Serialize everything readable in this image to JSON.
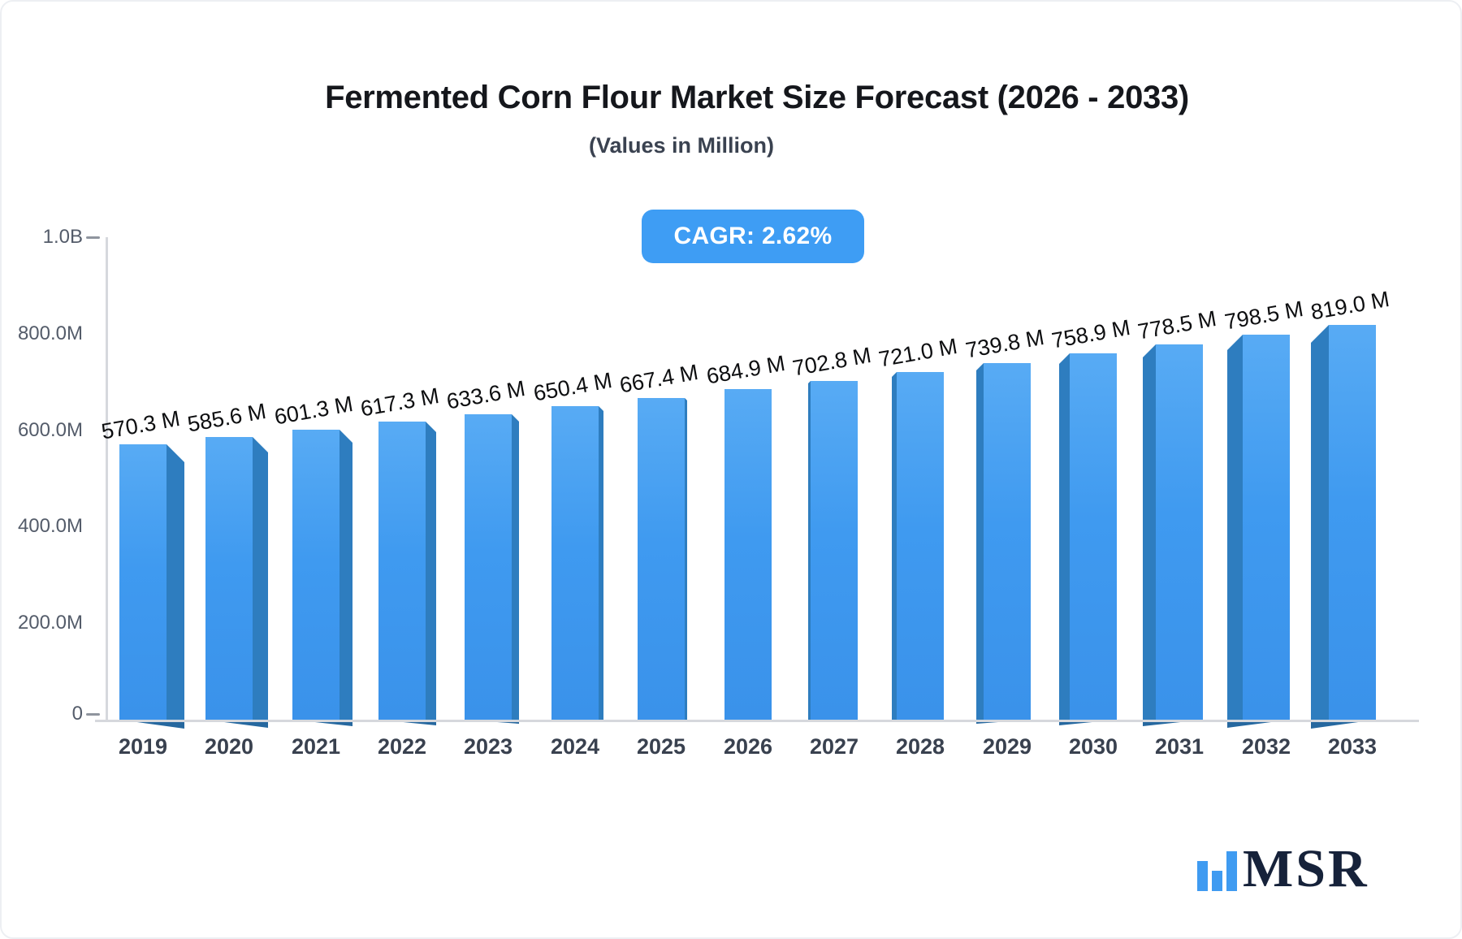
{
  "header": {
    "title": "Fermented Corn Flour Market Size Forecast (2026 - 2033)",
    "subtitle": "(Values in Million)",
    "cagr_label": "CAGR: 2.62%"
  },
  "colors": {
    "accent_blue": "#3e9df4",
    "bar_face_top": "#58abf4",
    "bar_face_bottom": "#3a92ea",
    "bar_side": "#2e7dbf",
    "axis_gray": "#d6d8dd",
    "logo_navy": "#16223a",
    "logo_blue": "#3f9bf1"
  },
  "chart_data": {
    "type": "bar",
    "title": "Fermented Corn Flour Market Size Forecast (2026 - 2033)",
    "subtitle": "(Values in Million)",
    "xlabel": "",
    "ylabel": "",
    "categories": [
      "2019",
      "2020",
      "2021",
      "2022",
      "2023",
      "2024",
      "2025",
      "2026",
      "2027",
      "2028",
      "2029",
      "2030",
      "2031",
      "2032",
      "2033"
    ],
    "values": [
      570.3,
      585.6,
      601.3,
      617.3,
      633.6,
      650.4,
      667.4,
      684.9,
      702.8,
      721.0,
      739.8,
      758.9,
      778.5,
      798.5,
      819.0
    ],
    "value_labels": [
      "570.3 M",
      "585.6 M",
      "601.3 M",
      "617.3 M",
      "633.6 M",
      "650.4 M",
      "667.4 M",
      "684.9 M",
      "702.8 M",
      "721.0 M",
      "739.8 M",
      "758.9 M",
      "778.5 M",
      "798.5 M",
      "819.0 M"
    ],
    "unit": "M",
    "ylim": [
      0,
      1000
    ],
    "grid": false,
    "legend": "none",
    "yaxis_ticks": [
      {
        "label": "1.0B",
        "value": 1000,
        "dash": true
      },
      {
        "label": "800.0M",
        "value": 800,
        "dash": false
      },
      {
        "label": "600.0M",
        "value": 600,
        "dash": false
      },
      {
        "label": "400.0M",
        "value": 400,
        "dash": false
      },
      {
        "label": "200.0M",
        "value": 200,
        "dash": false
      },
      {
        "label": "0",
        "value": 0,
        "dash": true
      }
    ]
  },
  "logo": {
    "text": "MSR"
  }
}
